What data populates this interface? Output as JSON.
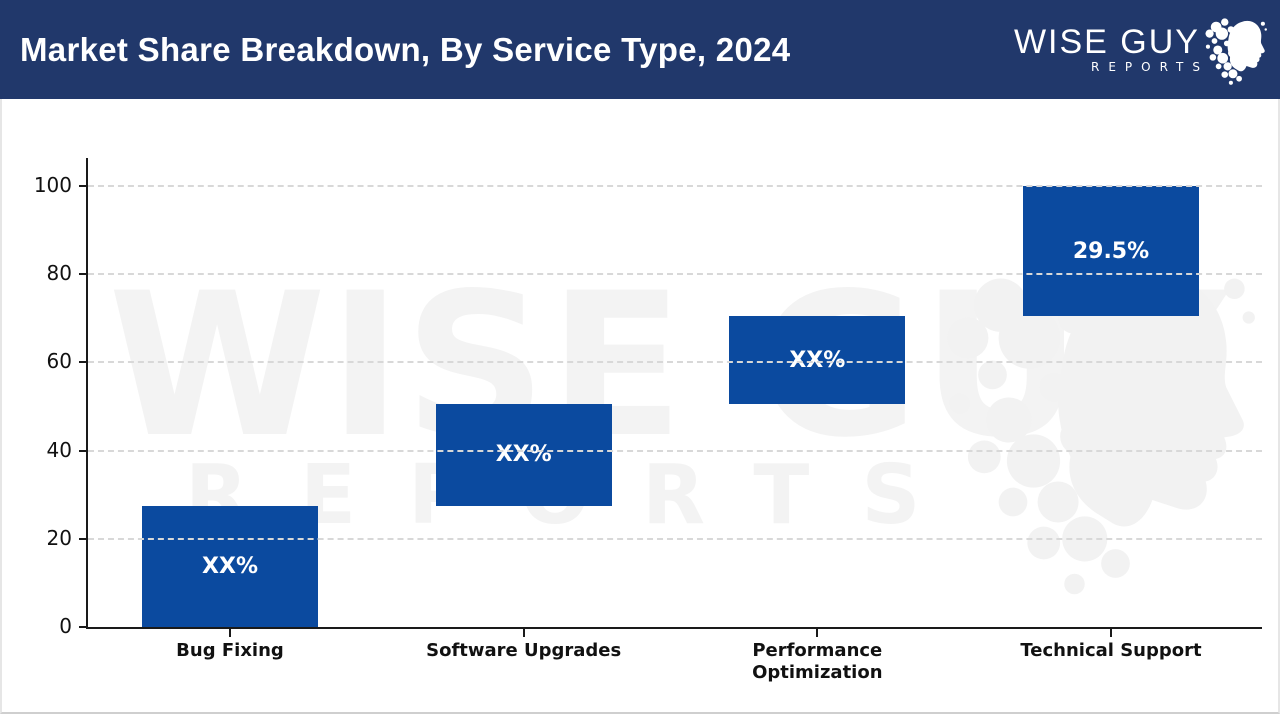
{
  "header": {
    "title": "Market Share Breakdown, By Service Type, 2024",
    "logo": {
      "name": "WISE GUY",
      "sub": "REPORTS"
    }
  },
  "watermark": {
    "text": "WISE GUY",
    "sub": "REPORTS"
  },
  "chart_data": {
    "type": "bar",
    "subtype": "floating-waterfall",
    "title": "Market Share Breakdown, By Service Type, 2024",
    "categories": [
      "Bug Fixing",
      "Software Upgrades",
      "Performance Optimization",
      "Technical Support"
    ],
    "segments": [
      {
        "category": "Bug Fixing",
        "start": 0,
        "end": 27.5,
        "label": "XX%"
      },
      {
        "category": "Software Upgrades",
        "start": 27.5,
        "end": 50.5,
        "label": "XX%"
      },
      {
        "category": "Performance Optimization",
        "start": 50.5,
        "end": 70.5,
        "label": "XX%"
      },
      {
        "category": "Technical Support",
        "start": 70.5,
        "end": 100,
        "label": "29.5%"
      }
    ],
    "ylim": [
      0,
      100
    ],
    "yticks": [
      0,
      20,
      40,
      60,
      80,
      100
    ],
    "grid": "horizontal-dashed",
    "legend": "none",
    "xlabel": "",
    "ylabel": ""
  },
  "colors": {
    "header_bg": "#21386b",
    "bar": "#0b4a9f",
    "bar_label": "#ffffff",
    "grid": "#d8d8d8",
    "axis": "#1a1a1a",
    "watermark": "#f3f3f3"
  }
}
